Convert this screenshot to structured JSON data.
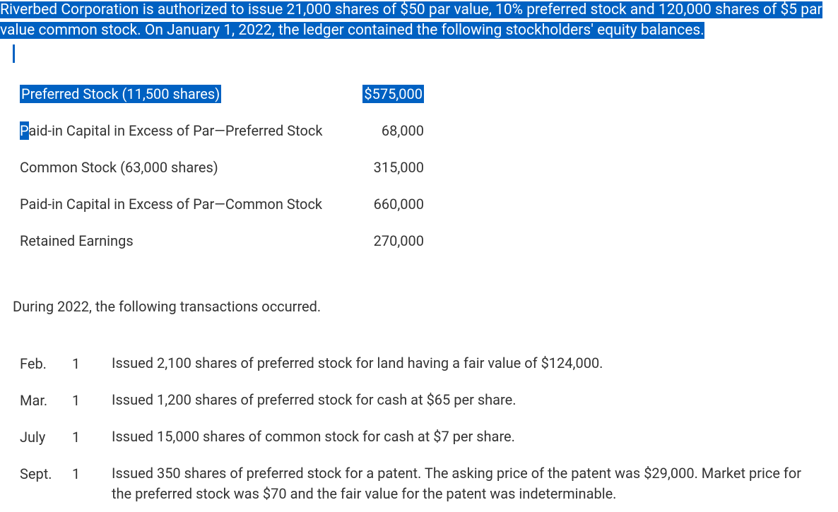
{
  "intro": {
    "fullText": "Riverbed Corporation is authorized to issue 21,000 shares of $50 par value, 10% preferred stock and 120,000 shares of $5 par value common stock. On January 1, 2022, the ledger contained the following stockholders' equity balances."
  },
  "balances": {
    "row1": {
      "label": "Preferred Stock (11,500 shares)",
      "value": "$575,000"
    },
    "row2": {
      "labelFirstChar": "P",
      "labelRest": "aid-in Capital in Excess of Par—Preferred Stock",
      "value": "68,000"
    },
    "row3": {
      "label": "Common Stock (63,000 shares)",
      "value": "315,000"
    },
    "row4": {
      "label": "Paid-in Capital in Excess of Par—Common Stock",
      "value": "660,000"
    },
    "row5": {
      "label": "Retained Earnings",
      "value": "270,000"
    }
  },
  "midText": "During 2022, the following transactions occurred.",
  "transactions": {
    "t1": {
      "month": "Feb.",
      "day": "1",
      "desc": "Issued 2,100 shares of preferred stock for land having a fair value of $124,000."
    },
    "t2": {
      "month": "Mar.",
      "day": "1",
      "desc": "Issued 1,200 shares of preferred stock for cash at $65 per share."
    },
    "t3": {
      "month": "July",
      "day": "1",
      "desc": "Issued 15,000 shares of common stock for cash at $7 per share."
    },
    "t4": {
      "month": "Sept.",
      "day": "1",
      "desc": "Issued 350 shares of preferred stock for a patent. The asking price of the patent was $29,000. Market price for the preferred stock was $70 and the fair value for the patent was indeterminable."
    }
  },
  "colors": {
    "highlight": "#0061c2",
    "text": "#333333",
    "background": "#ffffff"
  }
}
